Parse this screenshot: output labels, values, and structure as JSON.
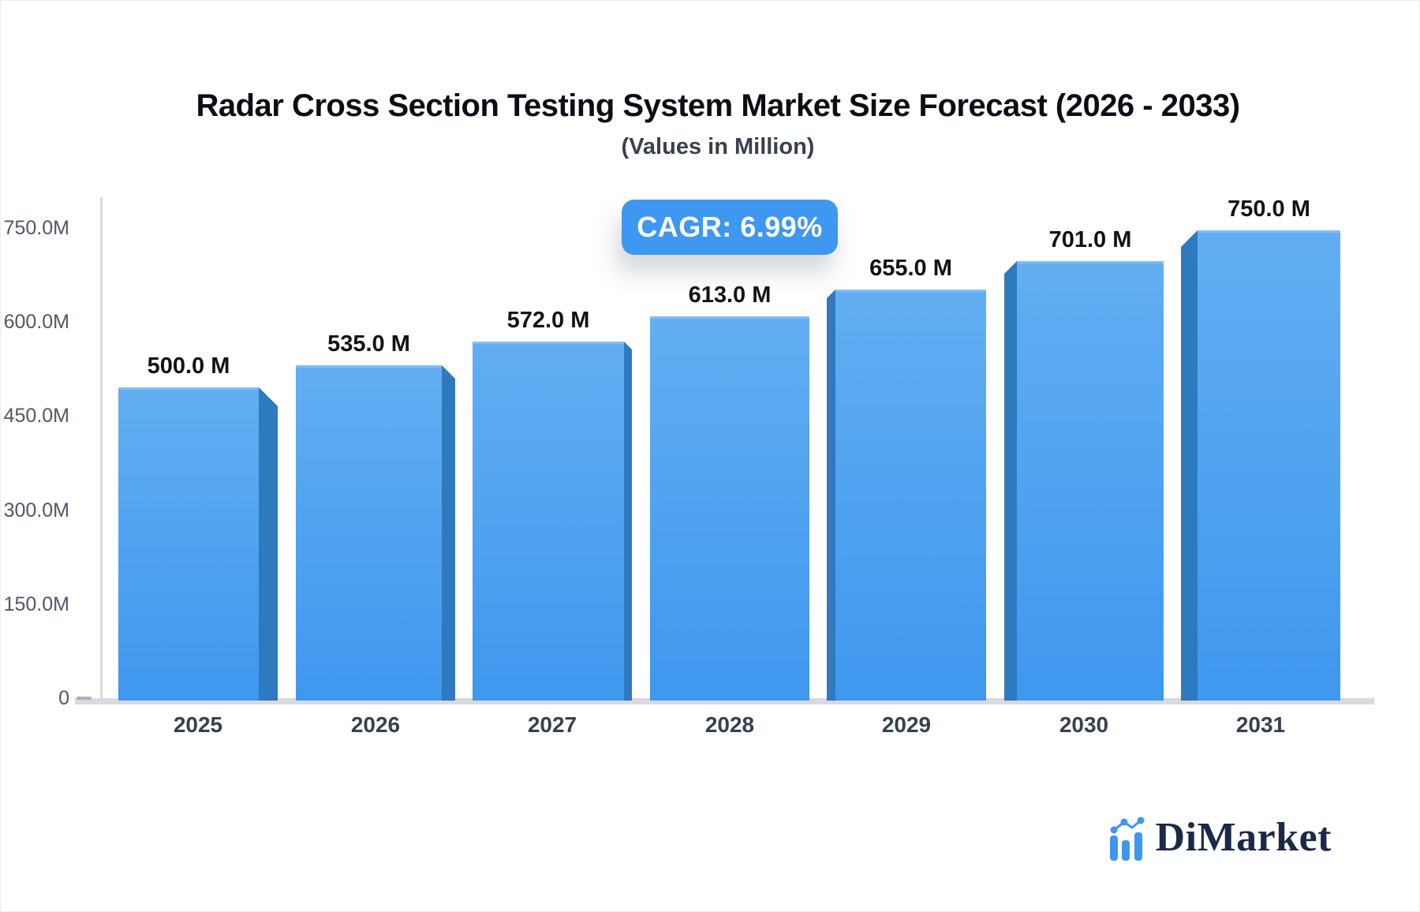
{
  "header": {
    "title": "Radar Cross Section Testing System Market Size Forecast (2026 - 2033)",
    "subtitle": "(Values in Million)"
  },
  "badge": {
    "label": "CAGR: 6.99%",
    "color": "#3e97f0",
    "text_color": "#ffffff"
  },
  "chart_data": {
    "type": "bar",
    "title": "Radar Cross Section Testing System Market Size Forecast (2026 - 2033)",
    "subtitle": "(Values in Million)",
    "categories": [
      "2025",
      "2026",
      "2027",
      "2028",
      "2029",
      "2030",
      "2031"
    ],
    "values": [
      500,
      535,
      572,
      613,
      655,
      701,
      750
    ],
    "bar_labels": [
      "500.0 M",
      "535.0 M",
      "572.0 M",
      "613.0 M",
      "655.0 M",
      "701.0 M",
      "750.0 M"
    ],
    "unit": "Million",
    "xlabel": "",
    "ylabel": "",
    "y_ticks": [
      "750.0M",
      "600.0M",
      "450.0M",
      "300.0M",
      "150.0M",
      "0"
    ],
    "y_tick_values": [
      750,
      600,
      450,
      300,
      150,
      0
    ],
    "ylim": [
      0,
      800
    ],
    "grid": false,
    "legend": false,
    "bar_color_top": "#63adf2",
    "bar_color_bottom": "#3f97ef",
    "bar_side_color": "#2e7abf",
    "axis_color": "#d8dade"
  },
  "footer": {
    "brand_name": "DiMarket",
    "brand_color": "#1b2949",
    "brand_icon": "mini-bar-chart-icon",
    "brand_icon_color": "#3f96f0"
  }
}
